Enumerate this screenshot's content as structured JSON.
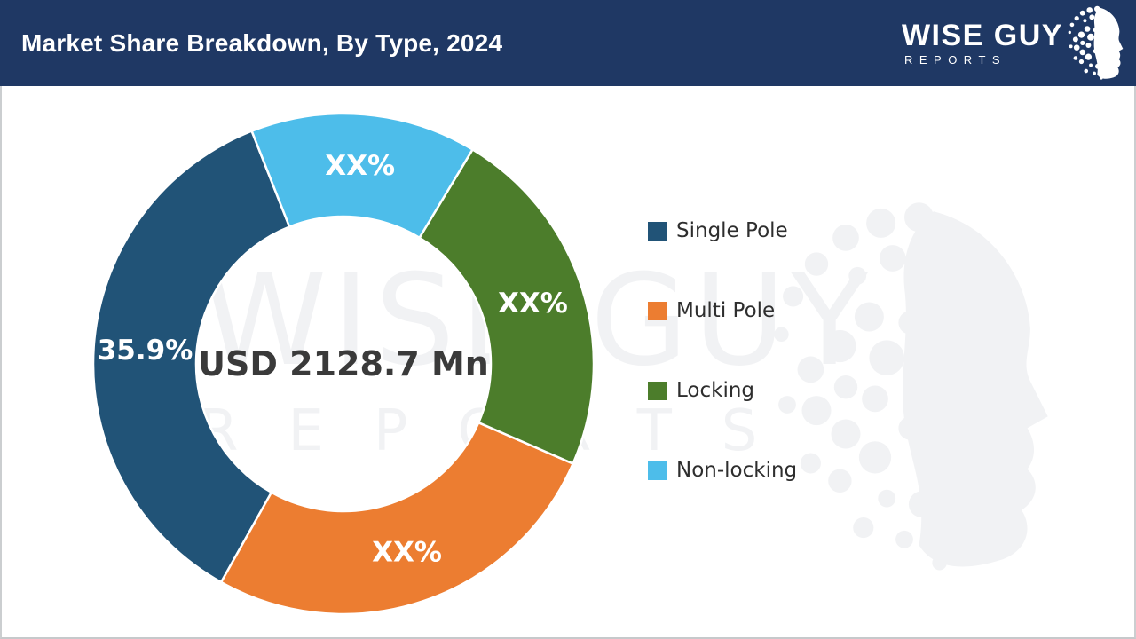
{
  "header": {
    "title": "Market Share Breakdown, By Type, 2024",
    "logo": {
      "line1": "WISE GUY",
      "line2": "REPORTS"
    }
  },
  "watermark": {
    "line1": "WISE GUY",
    "line2": "REPORTS"
  },
  "colors": {
    "header_bg": "#1F3864",
    "center_text": "#3A3A3A",
    "legend_text": "#2E2E2E",
    "watermark": "#F1F2F4",
    "page_border": "#CBCED0"
  },
  "chart_data": {
    "type": "pie",
    "subtype": "donut",
    "title": "Market Share Breakdown, By Type, 2024",
    "center_label": "USD 2128.7 Mn",
    "start_angle_deg": 111.5,
    "direction": "counterclockwise",
    "inner_radius_ratio": 0.59,
    "legend_position": "right",
    "segments": [
      {
        "name": "Single Pole",
        "value_pct": 35.9,
        "label": "35.9%",
        "color": "#215377"
      },
      {
        "name": "Multi Pole",
        "value_pct": 26.6,
        "label": "XX%",
        "color": "#EC7D31"
      },
      {
        "name": "Locking",
        "value_pct": 22.9,
        "label": "XX%",
        "color": "#4C7D2B"
      },
      {
        "name": "Non-locking",
        "value_pct": 14.6,
        "label": "XX%",
        "color": "#4DBDEA"
      }
    ]
  }
}
